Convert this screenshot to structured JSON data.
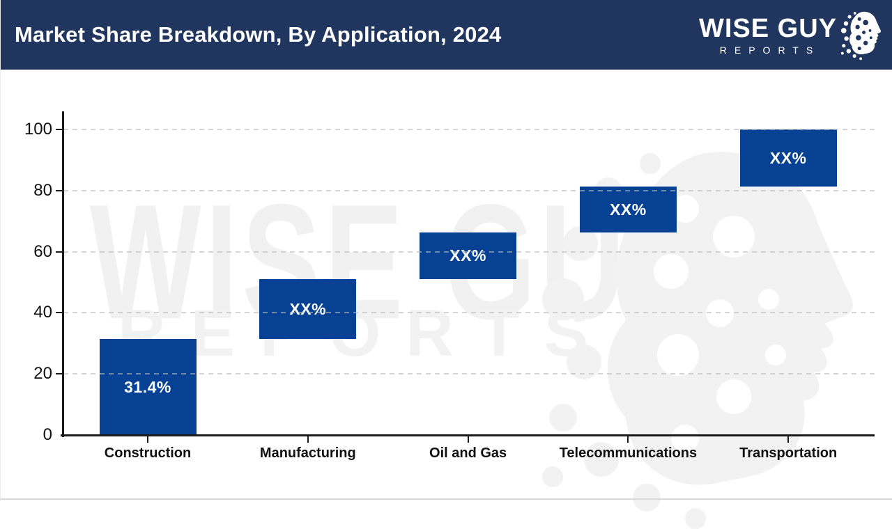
{
  "header": {
    "title": "Market Share Breakdown, By Application, 2024",
    "logo": {
      "line1": "WISE GUY",
      "line2": "REPORTS"
    }
  },
  "watermark": {
    "line1": "WISE GUY",
    "line2": "REPORTS"
  },
  "colors": {
    "header_bg": "#21365f",
    "bar_color": "#064193",
    "axis_color": "#1a1a1a",
    "grid_color": "#c9c9c9",
    "label_text": "#111111",
    "bar_label_text": "#ffffff",
    "watermark_color": "#f1f1f1"
  },
  "chart_data": {
    "type": "bar",
    "subtype": "waterfall",
    "title": "Market Share Breakdown, By Application, 2024",
    "xlabel": "",
    "ylabel": "",
    "categories": [
      "Construction",
      "Manufacturing",
      "Oil and Gas",
      "Telecommunications",
      "Transportation"
    ],
    "segments": [
      {
        "category": "Construction",
        "start": 0,
        "end": 31.4,
        "label": "31.4%"
      },
      {
        "category": "Manufacturing",
        "start": 31.4,
        "end": 51.0,
        "label": "XX%"
      },
      {
        "category": "Oil and Gas",
        "start": 51.0,
        "end": 66.3,
        "label": "XX%"
      },
      {
        "category": "Telecommunications",
        "start": 66.3,
        "end": 81.3,
        "label": "XX%"
      },
      {
        "category": "Transportation",
        "start": 81.3,
        "end": 100.0,
        "label": "XX%"
      }
    ],
    "y_ticks": [
      0,
      20,
      40,
      60,
      80,
      100
    ],
    "gridline_values": [
      20,
      40,
      60,
      80,
      100
    ],
    "ylim": [
      0,
      105
    ],
    "grid": true,
    "grid_style": "dashed",
    "legend": "none"
  }
}
